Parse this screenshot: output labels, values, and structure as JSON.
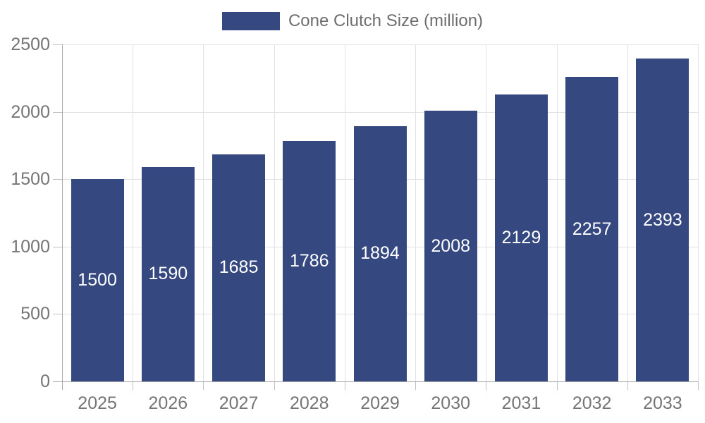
{
  "chart_data": {
    "type": "bar",
    "title": "",
    "categories": [
      "2025",
      "2026",
      "2027",
      "2028",
      "2029",
      "2030",
      "2031",
      "2032",
      "2033"
    ],
    "series": [
      {
        "name": "Cone Clutch Size (million)",
        "values": [
          1500,
          1590,
          1685,
          1786,
          1894,
          2008,
          2129,
          2257,
          2393
        ]
      }
    ],
    "xlabel": "",
    "ylabel": "",
    "ylim": [
      0,
      2500
    ],
    "yticks": [
      0,
      500,
      1000,
      1500,
      2000,
      2500
    ],
    "grid": true,
    "legend_position": "top-center",
    "value_labels_position": "inside-center",
    "colors": {
      "bar": "#354980",
      "bar_value_label": "#ffffff",
      "axis_text": "#757575",
      "legend_text": "#6e6e6e",
      "gridline": "#e2e2e2",
      "axis_line": "#a8a8a8",
      "tick": "#c0c0c6"
    }
  }
}
